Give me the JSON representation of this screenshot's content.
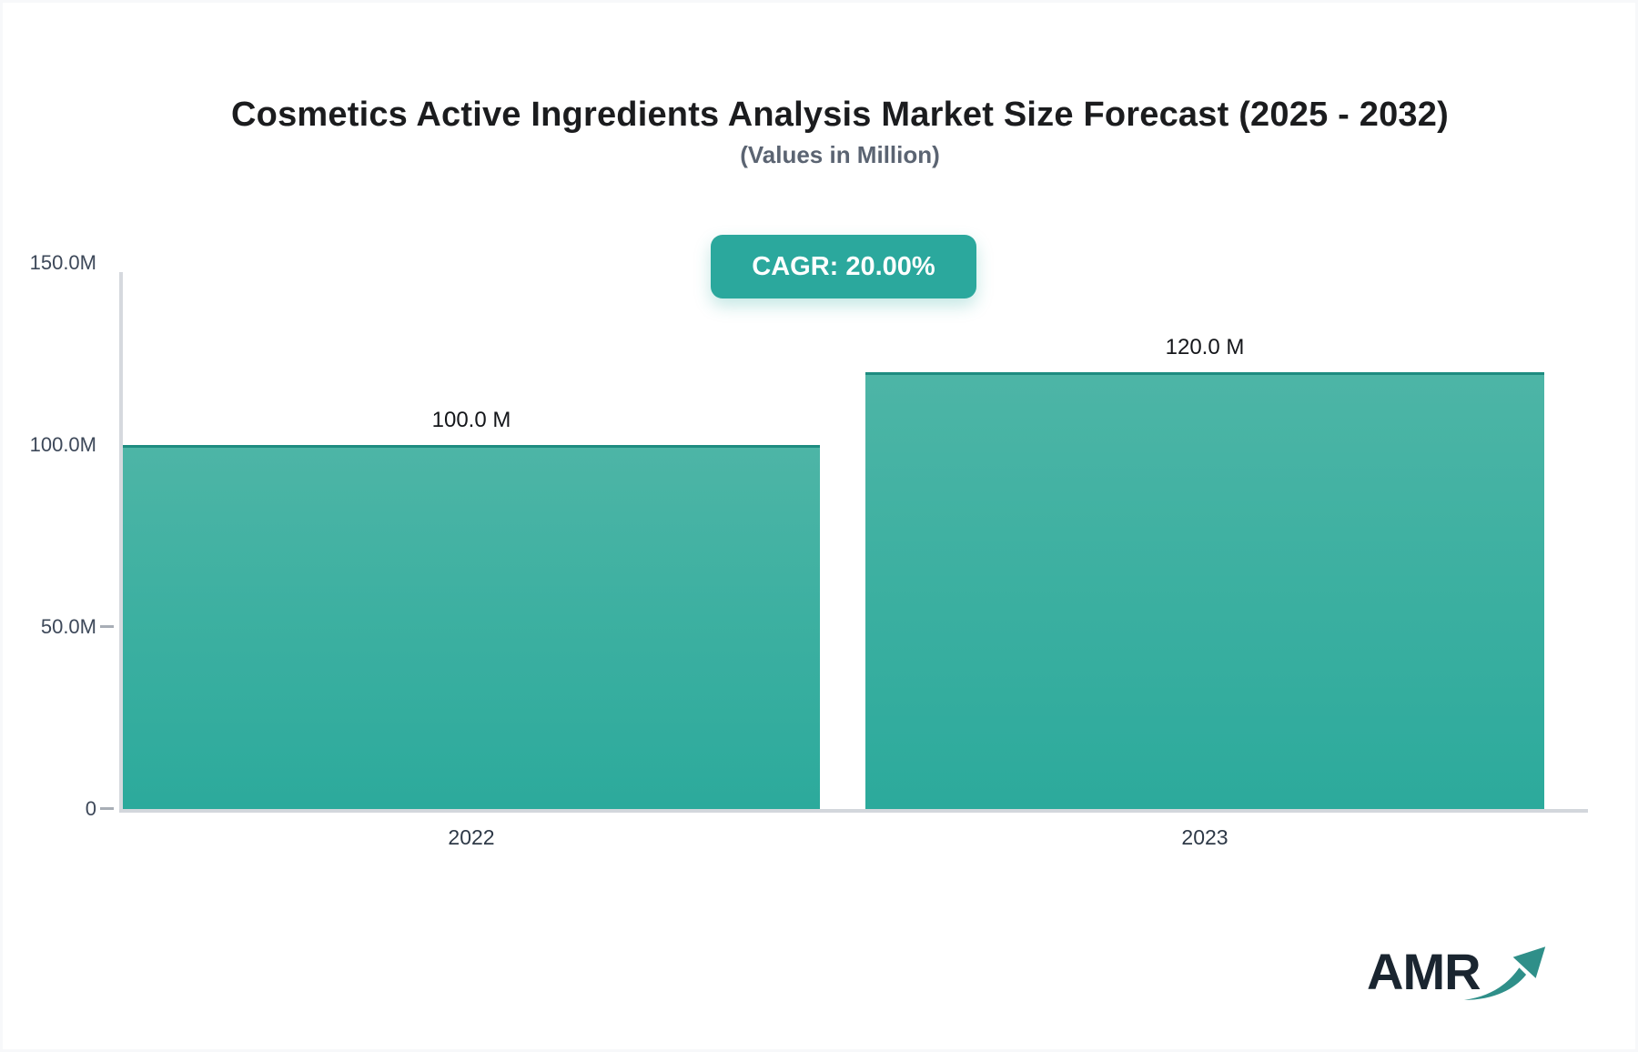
{
  "chart_data": {
    "type": "bar",
    "title": "Cosmetics Active Ingredients Analysis Market Size Forecast (2025 - 2032)",
    "subtitle": "(Values in Million)",
    "cagr_label": "CAGR: 20.00%",
    "categories": [
      "2022",
      "2023"
    ],
    "values": [
      100.0,
      120.0
    ],
    "value_labels": [
      "100.0 M",
      "120.0 M"
    ],
    "unit": "Million",
    "ylim": [
      0,
      150
    ],
    "y_ticks": [
      {
        "value": 150,
        "label": "150.0M",
        "show_tick": false
      },
      {
        "value": 100,
        "label": "100.0M",
        "show_tick": false
      },
      {
        "value": 50,
        "label": "50.0M",
        "show_tick": true
      },
      {
        "value": 0,
        "label": "0",
        "show_tick": true
      }
    ],
    "grid": false,
    "legend": "none"
  },
  "colors": {
    "accent_teal": "#2ba89d",
    "bar_gradient_top": "#4db5a6",
    "bar_gradient_bottom": "#2caa9c",
    "bar_top_border": "#1e8c80",
    "axis_gray": "#d6d9de",
    "logo_arrow_teal": "#2f8f89"
  },
  "logo": {
    "text": "AMR"
  }
}
